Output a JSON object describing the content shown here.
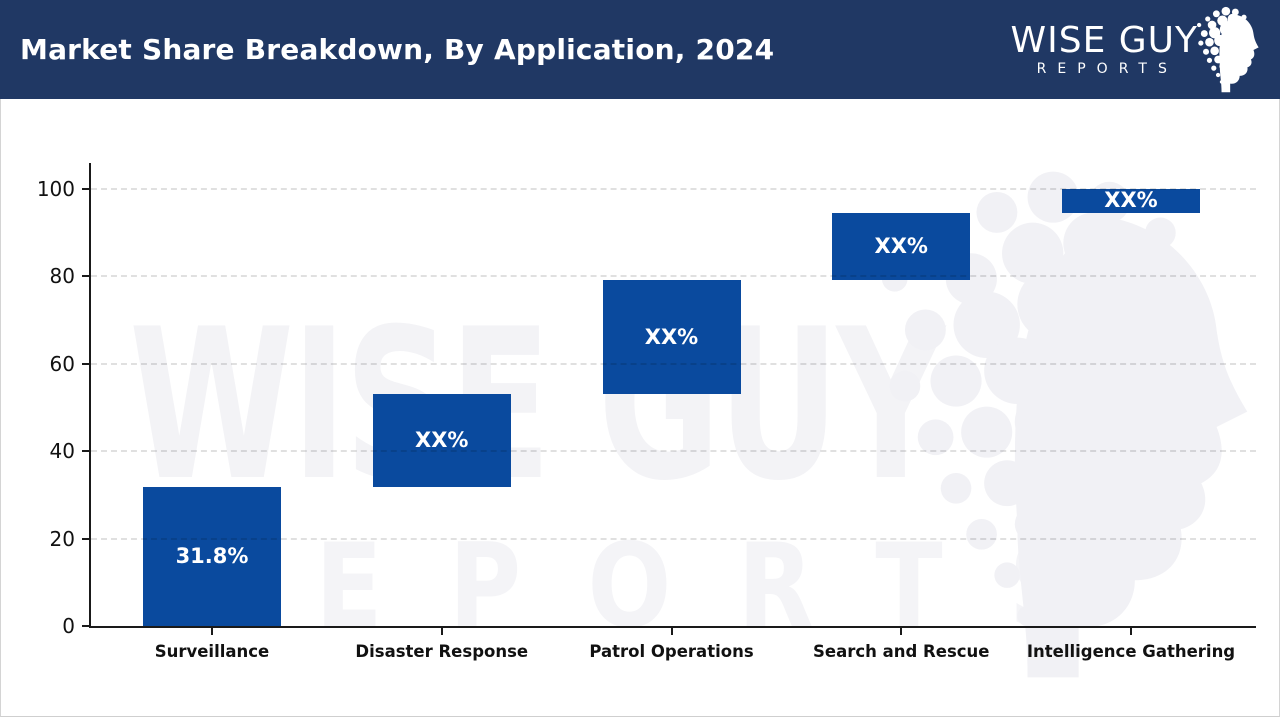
{
  "header": {
    "title": "Market Share Breakdown, By Application, 2024",
    "logo": {
      "line1": "WISE GUY",
      "line2": "REPORTS"
    }
  },
  "watermark": {
    "line1": "WISE GUY",
    "line2": "REPORTS"
  },
  "colors": {
    "header_bg": "#203864",
    "bar": "#0a4a9e",
    "bar_label": "#ffffff",
    "axis": "#1a1a1a",
    "gridline": "rgba(0,0,0,0.12)"
  },
  "chart_data": {
    "type": "bar",
    "subtype": "waterfall",
    "title": "Market Share Breakdown, By Application, 2024",
    "categories": [
      "Surveillance",
      "Disaster Response",
      "Patrol Operations",
      "Search and Rescue",
      "Intelligence Gathering"
    ],
    "segments": [
      {
        "category": "Surveillance",
        "start": 0,
        "end": 31.8,
        "label": "31.8%"
      },
      {
        "category": "Disaster Response",
        "start": 31.8,
        "end": 53.0,
        "label": "XX%"
      },
      {
        "category": "Patrol Operations",
        "start": 53.0,
        "end": 79.1,
        "label": "XX%"
      },
      {
        "category": "Search and Rescue",
        "start": 79.1,
        "end": 94.3,
        "label": "XX%"
      },
      {
        "category": "Intelligence Gathering",
        "start": 94.3,
        "end": 100.0,
        "label": "XX%"
      }
    ],
    "xlabel": "",
    "ylabel": "",
    "y_ticks": [
      0,
      20,
      40,
      60,
      80,
      100
    ],
    "ylim": [
      0,
      105.8
    ],
    "grid": true,
    "legend": false,
    "bar_color": "#0a4a9e"
  }
}
